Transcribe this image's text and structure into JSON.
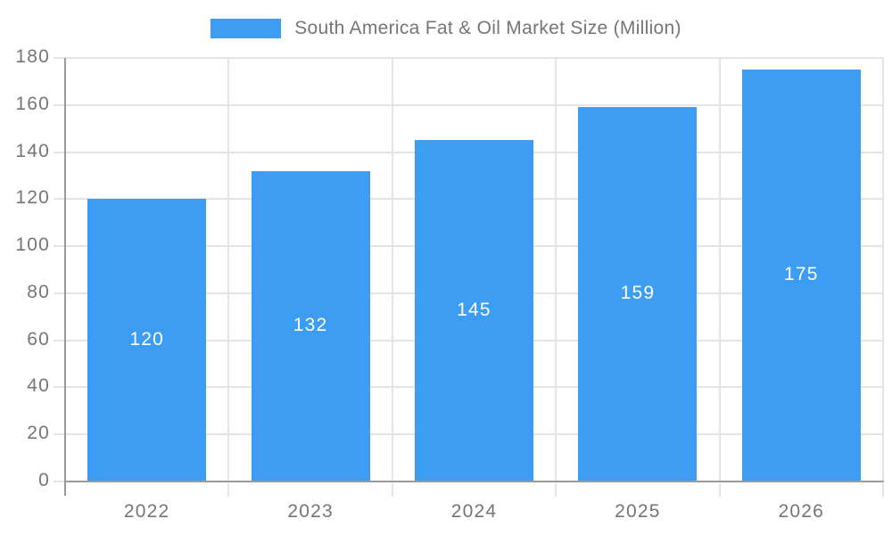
{
  "chart_data": {
    "type": "bar",
    "title": "South America Fat & Oil Market Size (Million)",
    "categories": [
      "2022",
      "2023",
      "2024",
      "2025",
      "2026"
    ],
    "values": [
      120,
      132,
      145,
      159,
      175
    ],
    "bar_value_labels": [
      "120",
      "132",
      "145",
      "159",
      "175"
    ],
    "xlabel": "",
    "ylabel": "",
    "ylim": [
      0,
      180
    ],
    "yticks": [
      0,
      20,
      40,
      60,
      80,
      100,
      120,
      140,
      160,
      180
    ],
    "grid": true,
    "legend_position": "top",
    "colors": {
      "bar": "#3d9df2",
      "bar_label_text": "#ffffff",
      "axis_line": "#9a9a9a",
      "gridline": "#e4e4e4",
      "tick_text": "#757575",
      "legend_text": "#757575",
      "background": "#ffffff"
    }
  }
}
